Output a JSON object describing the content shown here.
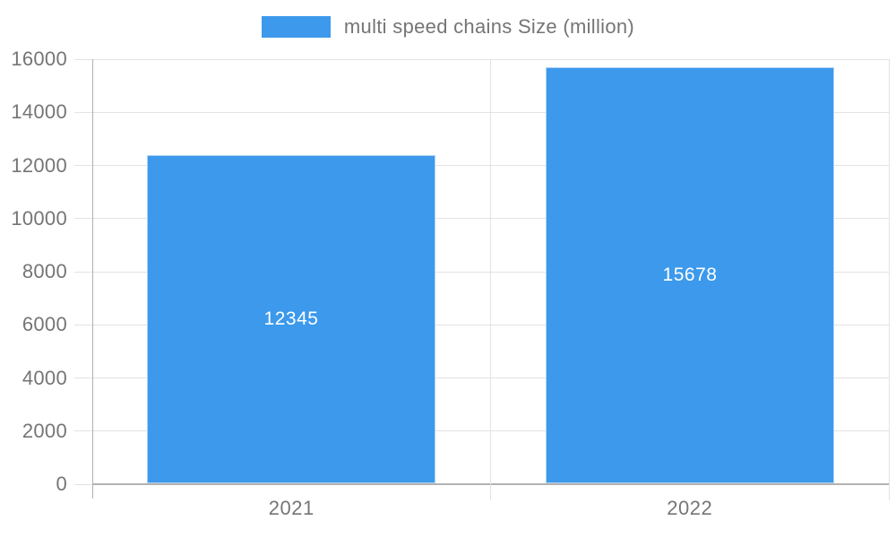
{
  "colors": {
    "bar_fill": "#3C99EC",
    "bar_stroke": "#AFD3F4",
    "axis_line": "#B0B0B0",
    "baseline": "#B2B2B2",
    "gridline": "#E3E3E3",
    "axis_text": "#757575",
    "value_label_text": "#FFFFFF",
    "background": "#FFFFFF"
  },
  "chart_data": {
    "type": "bar",
    "title": "",
    "categories": [
      "2021",
      "2022"
    ],
    "series": [
      {
        "name": "multi speed chains Size (million)",
        "values": [
          12345,
          15678
        ]
      }
    ],
    "value_labels": [
      "12345",
      "15678"
    ],
    "xlabel": "",
    "ylabel": "",
    "ylim": [
      0,
      16000
    ],
    "ytick_step": 2000,
    "ytick_labels": [
      "0",
      "2000",
      "4000",
      "6000",
      "8000",
      "10000",
      "12000",
      "14000",
      "16000"
    ],
    "grid": true,
    "legend_position": "top"
  }
}
